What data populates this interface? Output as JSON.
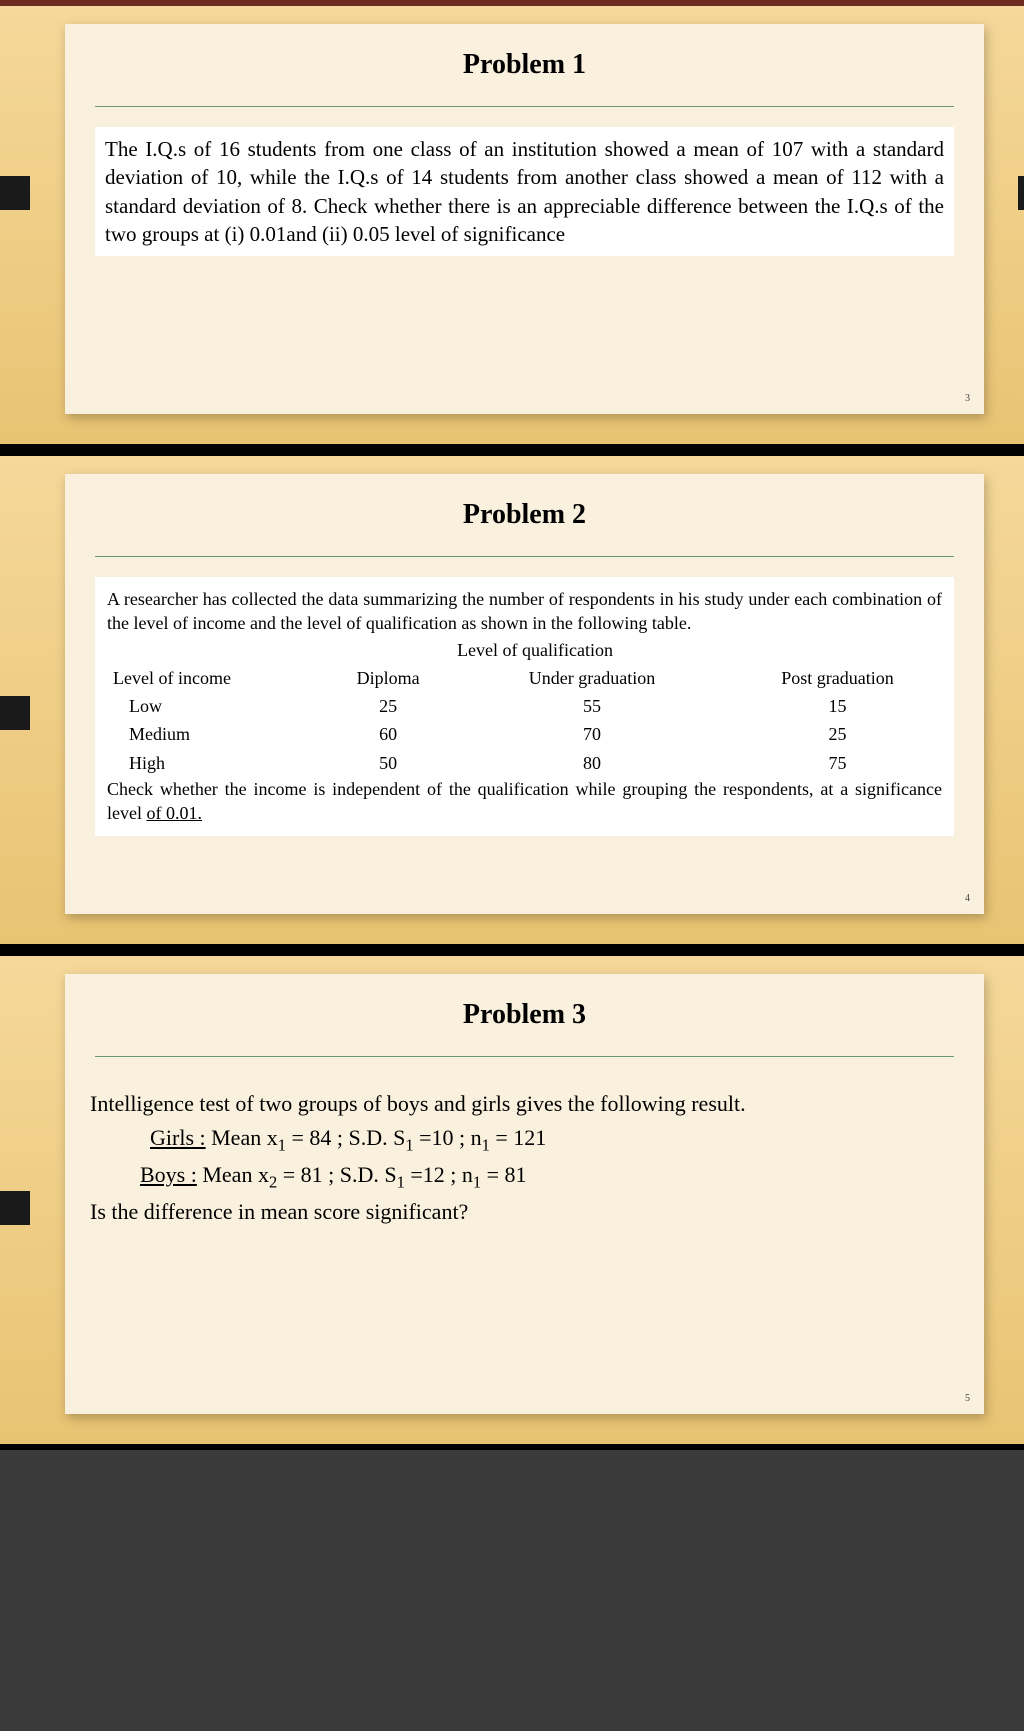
{
  "slide1": {
    "title": "Problem 1",
    "body": "The I.Q.s of 16 students from one class of an institution showed a mean of 107 with a standard deviation of 10, while the I.Q.s of 14 students from another class showed a mean of 112 with a standard deviation of 8. Check whether there is an appreciable difference between the I.Q.s of the two groups at (i) 0.01and (ii) 0.05 level of significance",
    "pagenum": "3"
  },
  "slide2": {
    "title": "Problem 2",
    "intro": "A researcher has collected the data summarizing the number of respondents in his study under each combination of the level of income and the level of qualification as shown in the following table.",
    "super_header": "Level of qualification",
    "row_header": "Level of income",
    "columns": [
      "Diploma",
      "Under graduation",
      "Post graduation"
    ],
    "rows": [
      {
        "label": "Low",
        "values": [
          "25",
          "55",
          "15"
        ]
      },
      {
        "label": "Medium",
        "values": [
          "60",
          "70",
          "25"
        ]
      },
      {
        "label": "High",
        "values": [
          "50",
          "80",
          "75"
        ]
      }
    ],
    "footer_a": "Check whether the income is independent of the qualification while grouping the respondents, at a significance level ",
    "footer_b": "of 0.01.",
    "pagenum": "4"
  },
  "slide3": {
    "title": "Problem 3",
    "line1": "Intelligence test of two groups of boys and girls gives the following result.",
    "girls_label": "Girls  :",
    "girls_eq_a": "  Mean x",
    "girls_eq_b": " = 84 ; S.D. S",
    "girls_eq_c": " =10 ; n",
    "girls_eq_d": " = 121",
    "boys_label": "Boys  :",
    "boys_eq_a": "  Mean x",
    "boys_eq_b": " = 81 ; S.D. S",
    "boys_eq_c": " =12 ; n",
    "boys_eq_d": " = 81",
    "sub1": "1",
    "sub2": "2",
    "line4": "Is the difference in mean score significant?",
    "pagenum": "5"
  }
}
